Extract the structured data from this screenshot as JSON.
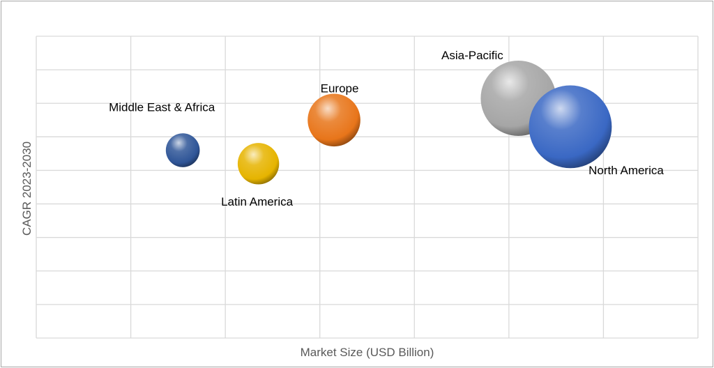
{
  "chart_data": {
    "type": "bubble",
    "xlabel": "Market Size (USD Billion)",
    "ylabel": "CAGR 2023-2030",
    "xlim": [
      0,
      7
    ],
    "ylim": [
      0,
      9
    ],
    "grid": true,
    "points": [
      {
        "label": "Middle East & Africa",
        "x": 1.55,
        "y": 5.6,
        "size": 0.9,
        "color": "#2f5597"
      },
      {
        "label": "Latin America",
        "x": 2.35,
        "y": 5.2,
        "size": 1.1,
        "color": "#e6b400"
      },
      {
        "label": "Europe",
        "x": 3.15,
        "y": 6.5,
        "size": 1.4,
        "color": "#e8751a"
      },
      {
        "label": "Asia-Pacific",
        "x": 5.1,
        "y": 7.15,
        "size": 2.0,
        "color": "#a6a6a6"
      },
      {
        "label": "North America",
        "x": 5.65,
        "y": 6.3,
        "size": 2.2,
        "color": "#3a68c4"
      }
    ]
  }
}
